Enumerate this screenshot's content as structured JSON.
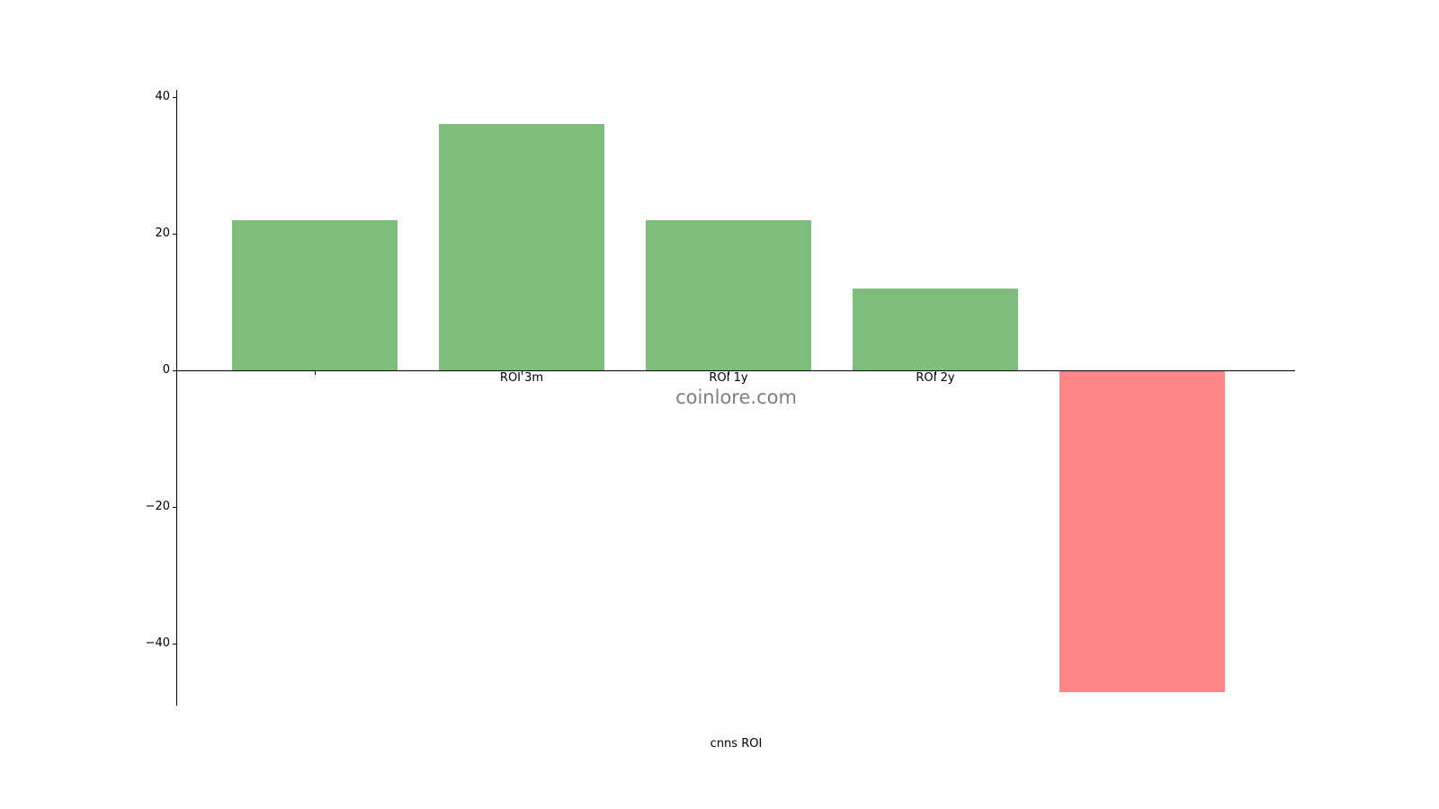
{
  "watermark_text": "coinlore.com",
  "colors": {
    "positive_bar": "#7dbe7d",
    "negative_bar": "#ff8686",
    "axis": "#000000",
    "watermark": "#7f7f7f"
  },
  "chart_data": {
    "type": "bar",
    "categories": [
      "",
      "ROI 3m",
      "ROI 1y",
      "ROI 2y",
      ""
    ],
    "values": [
      22,
      36,
      22,
      12,
      -47
    ],
    "bar_colors": [
      "#7dbe7d",
      "#7dbe7d",
      "#7dbe7d",
      "#7dbe7d",
      "#ff8686"
    ],
    "title": "",
    "xlabel": "cnns ROI",
    "ylabel": "",
    "ylim": [
      -49,
      41
    ],
    "yticks": [
      40,
      20,
      0,
      -20,
      -40
    ],
    "yticklabels": [
      "40",
      "20",
      "0",
      "−20",
      "−40"
    ],
    "grid": false,
    "legend": false,
    "watermark": "coinlore.com"
  }
}
